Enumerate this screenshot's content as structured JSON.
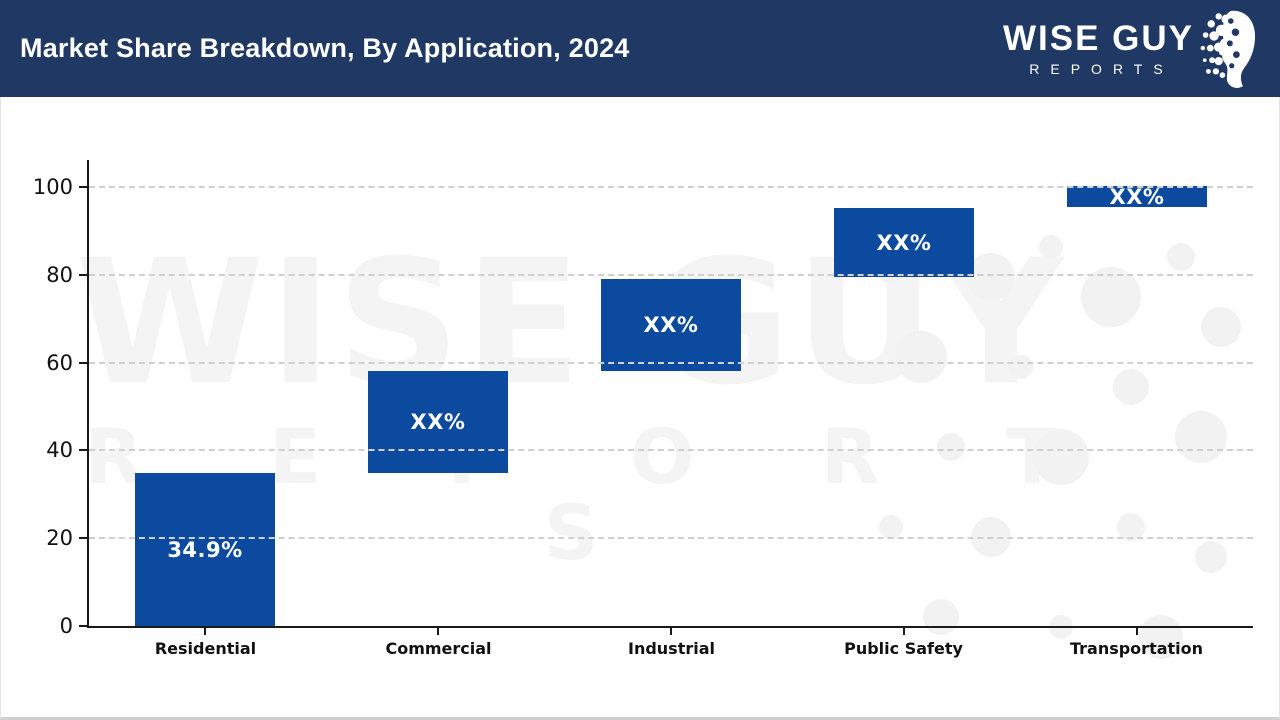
{
  "header": {
    "title": "Market Share Breakdown, By Application, 2024",
    "bg": "#1f3864",
    "logo": {
      "line1": "WISE GUY",
      "line2": "REPORTS"
    }
  },
  "watermark": {
    "line1": "WISE GUY",
    "line2": "R E P O R T S"
  },
  "chart_data": {
    "type": "bar",
    "subtype": "waterfall",
    "title": "Market Share Breakdown, By Application, 2024",
    "categories": [
      "Residential",
      "Commercial",
      "Industrial",
      "Public Safety",
      "Transportation"
    ],
    "segments": [
      {
        "start": 0,
        "end": 34.9
      },
      {
        "start": 34.9,
        "end": 58.2
      },
      {
        "start": 58.2,
        "end": 79.1
      },
      {
        "start": 79.4,
        "end": 95.2
      },
      {
        "start": 95.5,
        "end": 100.2
      }
    ],
    "labels": [
      "34.9%",
      "XX%",
      "XX%",
      "XX%",
      "XX%"
    ],
    "xlabel": "",
    "ylabel": "",
    "yticks": [
      0,
      20,
      40,
      60,
      80,
      100
    ],
    "ylim": [
      0,
      106
    ],
    "grid": "dashed-horizontal",
    "legend": "none",
    "bar_color": "#0b4a9e",
    "bar_label_color": "#ffffff",
    "grid_color": "#d0d0d0",
    "axis_color": "#1a1a1a"
  }
}
